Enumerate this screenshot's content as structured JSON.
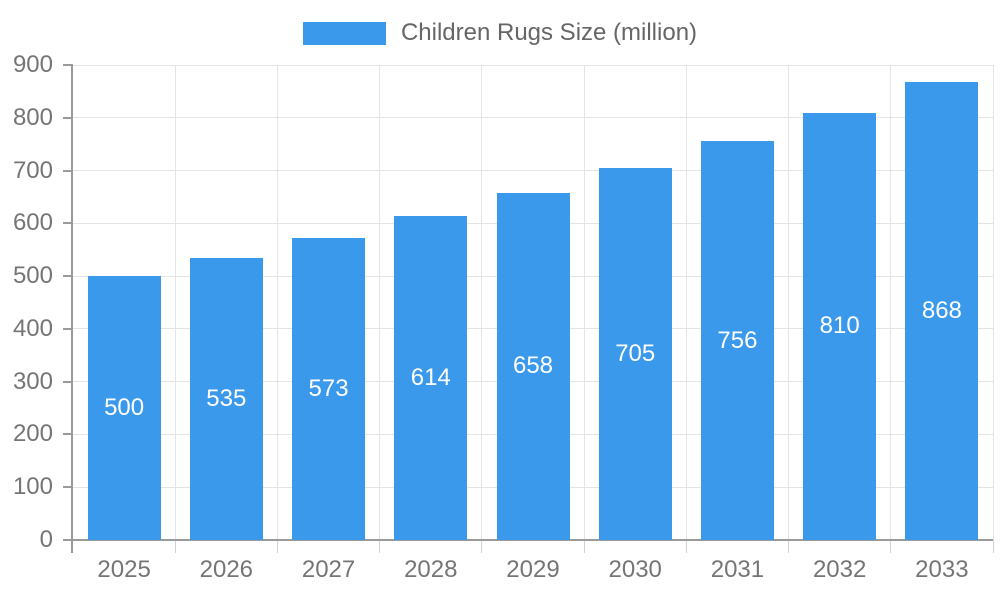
{
  "chart": {
    "legend": {
      "position": "top"
    },
    "colors": {
      "bar": "#3b99ec",
      "grid": "#e4e4e4",
      "axis": "#9a9a9a",
      "x_tick": "#d2d2d2",
      "tick_label": "#757575",
      "legend_text": "#666666",
      "bar_label": "#ffffff",
      "background": "#ffffff"
    }
  },
  "chart_data": {
    "type": "bar",
    "title": "",
    "categories": [
      "2025",
      "2026",
      "2027",
      "2028",
      "2029",
      "2030",
      "2031",
      "2032",
      "2033"
    ],
    "series": [
      {
        "name": "Children Rugs Size (million)",
        "values": [
          500,
          535,
          573,
          614,
          658,
          705,
          756,
          810,
          868
        ]
      }
    ],
    "xlabel": "",
    "ylabel": "",
    "ylim": [
      0,
      900
    ],
    "ytick_step": 100,
    "grid": true,
    "legend_position": "top",
    "bar_labels_inside": true
  }
}
